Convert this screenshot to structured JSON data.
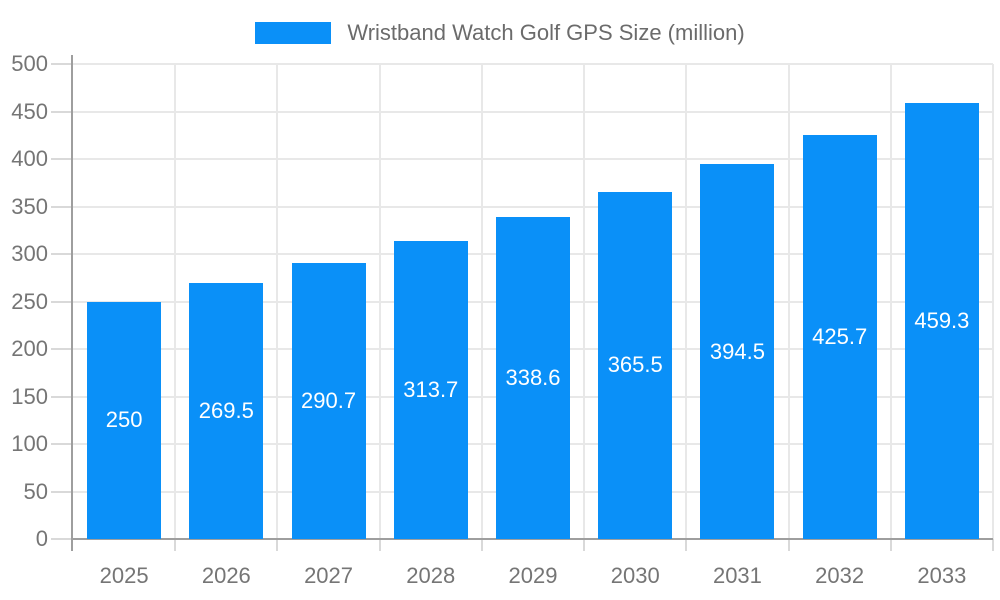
{
  "legend": {
    "label": "Wristband Watch Golf GPS Size (million)"
  },
  "chart_data": {
    "type": "bar",
    "title": "Wristband Watch Golf GPS Size (million)",
    "categories": [
      "2025",
      "2026",
      "2027",
      "2028",
      "2029",
      "2030",
      "2031",
      "2032",
      "2033"
    ],
    "series": [
      {
        "name": "Wristband Watch Golf GPS Size (million)",
        "values": [
          250,
          269.5,
          290.7,
          313.7,
          338.6,
          365.5,
          394.5,
          425.7,
          459.3
        ]
      }
    ],
    "value_labels_shown": true,
    "xlabel": "",
    "ylabel": "",
    "ylim": [
      0,
      500
    ],
    "ytick_step": 50,
    "yticks": [
      0,
      50,
      100,
      150,
      200,
      250,
      300,
      350,
      400,
      450,
      500
    ],
    "grid": true,
    "legend_position": "top"
  },
  "colors": {
    "bar": "#0a90f8",
    "grid": "#e8e8e8",
    "tick": "#d9d9d9",
    "axis": "#9e9e9e",
    "label_text": "#757575",
    "legend_text": "#6b6b6b",
    "value_text": "#ffffff",
    "background": "#ffffff"
  }
}
